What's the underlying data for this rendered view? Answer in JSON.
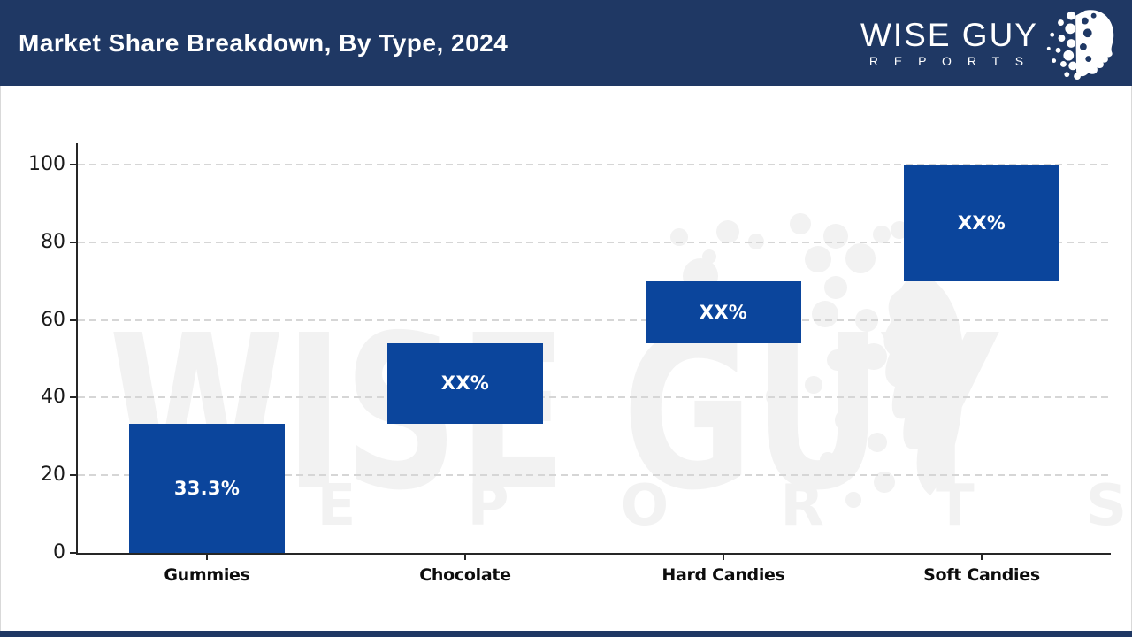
{
  "header": {
    "title": "Market Share Breakdown, By Type, 2024",
    "logo": {
      "line1": "WISE GUY",
      "line2": "R E P O R T S"
    }
  },
  "watermark": {
    "line1": "WISE GUY",
    "line2": "R E P O R T S"
  },
  "colors": {
    "header_bg": "#1F3864",
    "footer_bg": "#1F3864",
    "bar": "#0B459C",
    "bar_label": "#FFFFFF",
    "axis": "#262626",
    "gridline": "#D6D6D6"
  },
  "chart_data": {
    "type": "bar",
    "subtype": "waterfall",
    "title": "Market Share Breakdown, By Type, 2024",
    "categories": [
      "Gummies",
      "Chocolate",
      "Hard Candies",
      "Soft Candies"
    ],
    "bars": [
      {
        "category": "Gummies",
        "start": 0,
        "end": 33.3,
        "label": "33.3%"
      },
      {
        "category": "Chocolate",
        "start": 33.3,
        "end": 54,
        "label": "XX%"
      },
      {
        "category": "Hard Candies",
        "start": 54,
        "end": 70,
        "label": "XX%"
      },
      {
        "category": "Soft Candies",
        "start": 70,
        "end": 100,
        "label": "XX%"
      }
    ],
    "xlabel": "",
    "ylabel": "",
    "ylim": [
      0,
      105
    ],
    "yticks": [
      0,
      20,
      40,
      60,
      80,
      100
    ],
    "grid": "horizontal-dashed",
    "legend": "none"
  }
}
